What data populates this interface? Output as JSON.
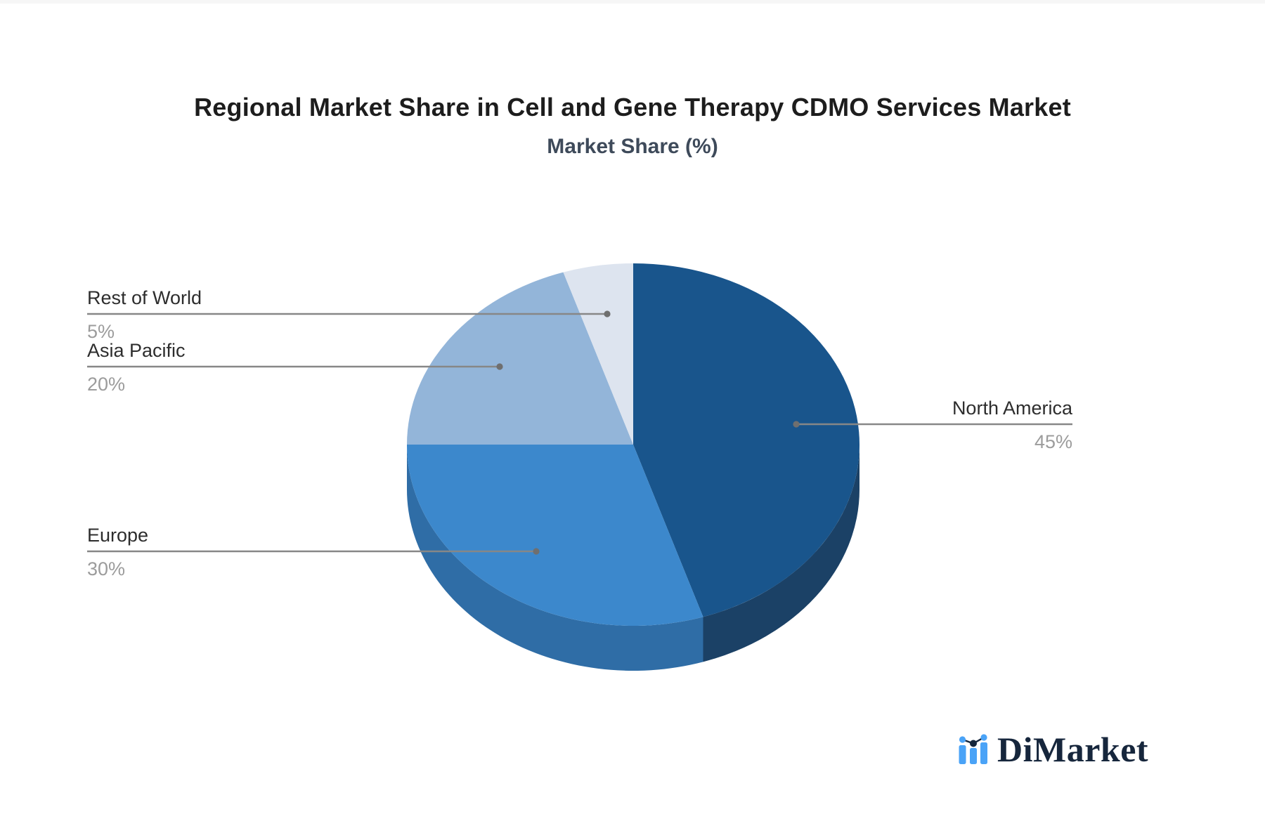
{
  "chart_data": {
    "type": "pie",
    "title": "Regional Market Share in Cell and Gene Therapy CDMO Services Market",
    "subtitle": "Market Share (%)",
    "unit": "%",
    "start_angle_deg": 0,
    "direction": "clockwise",
    "effect": "3d-extruded",
    "slices": [
      {
        "label": "North America",
        "value": 45,
        "color": "#19558c",
        "side_color": "#1b4166"
      },
      {
        "label": "Europe",
        "value": 30,
        "color": "#3c88cc",
        "side_color": "#2f6da6"
      },
      {
        "label": "Asia Pacific",
        "value": 20,
        "color": "#93b5d9"
      },
      {
        "label": "Rest of World",
        "value": 5,
        "color": "#dde4ef"
      }
    ],
    "callout_text_color": "#2d2d2d",
    "callout_value_color": "#9c9c9c",
    "leader_line_color": "#878787",
    "leader_dot_color": "#6f6f6f",
    "legend": "none",
    "background": "#ffffff"
  },
  "logo": {
    "text": "DiMarket",
    "text_color": "#16263c",
    "icon_bar_color": "#4aa3f7",
    "icon_dot_color": "#16263c"
  }
}
